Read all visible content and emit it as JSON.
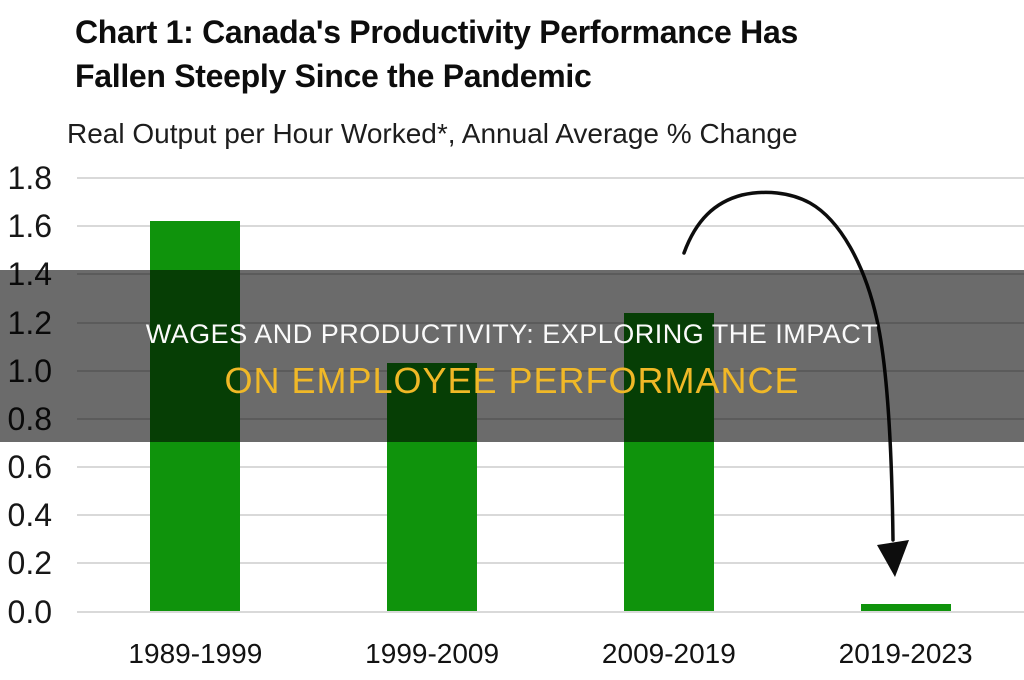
{
  "header": {
    "title_lines": [
      "Chart 1: Canada's Productivity Performance Has",
      "Fallen Steeply Since the Pandemic"
    ],
    "subtitle": "Real Output per Hour Worked*, Annual Average % Change"
  },
  "overlay_banner": {
    "line1": "WAGES AND PRODUCTIVITY: EXPLORING THE IMPACT",
    "line2": "ON EMPLOYEE PERFORMANCE",
    "line1_color": "#fafafa",
    "line2_color": "#f0b827",
    "background": "rgba(0, 0, 0, 0.58)"
  },
  "chart_data": {
    "type": "bar",
    "title": "Chart 1: Canada's Productivity Performance Has Fallen Steeply Since the Pandemic",
    "subtitle": "Real Output per Hour Worked*, Annual Average % Change",
    "categories": [
      "1989-1999",
      "1999-2009",
      "2009-2019",
      "2019-2023"
    ],
    "values": [
      1.62,
      1.03,
      1.24,
      0.03
    ],
    "ytick_labels": [
      "1.8",
      "1.6",
      "1.4",
      "1.2",
      "1.0",
      "0.8",
      "0.6",
      "0.4",
      "0.2",
      "0.0"
    ],
    "ylim": [
      0,
      1.8
    ],
    "ytick_step": 0.2,
    "xlabel": "",
    "ylabel": "",
    "grid": true,
    "legend": "none",
    "bar_color": "#0f930c",
    "gridline_color": "#d9d9d9",
    "annotation": {
      "type": "curved-arrow",
      "description": "hand-drawn arrow pointing down at the 2019-2023 bar",
      "color": "#0d0d0d"
    }
  }
}
